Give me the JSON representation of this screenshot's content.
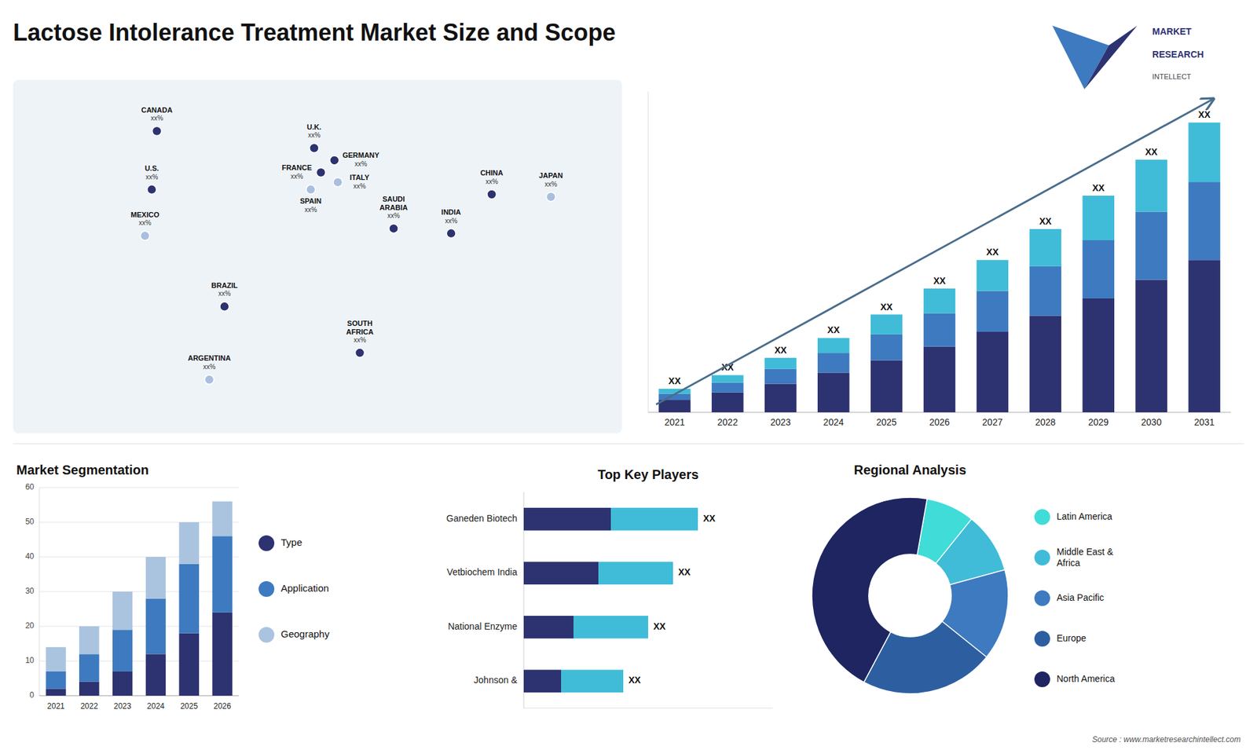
{
  "title": "Lactose Intolerance Treatment Market Size and Scope",
  "annotations": [
    "MARKET",
    "RESEARCH",
    "INTELLECT",
    "Source : www.marketresearchintellect.com"
  ],
  "chart_data": [
    {
      "type": "map",
      "categories": [
        "CANADA",
        "U.S.",
        "MEXICO",
        "BRAZIL",
        "ARGENTINA",
        "U.K.",
        "FRANCE",
        "SPAIN",
        "GERMANY",
        "ITALY",
        "SAUDI\nARABIA",
        "SOUTH\nAFRICA",
        "INDIA",
        "CHINA",
        "JAPAN"
      ],
      "x": [
        -95,
        -98,
        -102,
        -55,
        -64,
        -2,
        2,
        -4,
        10,
        12,
        45,
        25,
        79,
        103,
        138
      ],
      "y": [
        64,
        40,
        21,
        -8,
        -38,
        57,
        47,
        40,
        52,
        43,
        24,
        -27,
        22,
        38,
        37
      ],
      "colors": [
        "#2d3270",
        "#2d3270",
        "#aabfe0",
        "#2d3270",
        "#aabfe0",
        "#2d3270",
        "#2d3270",
        "#aabfe0",
        "#2d3270",
        "#aabfe0",
        "#2d3270",
        "#2d3270",
        "#2d3270",
        "#2d3270",
        "#aabfe0"
      ],
      "annotations": [
        "xx%",
        "xx%",
        "xx%",
        "xx%",
        "xx%",
        "xx%",
        "xx%",
        "xx%",
        "xx%",
        "xx%",
        "xx%",
        "xx%",
        "xx%",
        "xx%",
        "xx%"
      ],
      "xlim": [
        -180,
        180
      ],
      "ylim": [
        -60,
        85
      ],
      "tick_labels": false
    },
    {
      "type": "bar",
      "stacked": true,
      "categories": [
        "2021",
        "2022",
        "2023",
        "2024",
        "2025",
        "2026",
        "2027",
        "2028",
        "2029",
        "2030",
        "2031"
      ],
      "series": [
        {
          "color": "#2d3270",
          "values": [
            1.0,
            1.6,
            2.3,
            3.2,
            4.2,
            5.3,
            6.5,
            7.8,
            9.2,
            10.7,
            12.3
          ]
        },
        {
          "color": "#3e7abf",
          "values": [
            0.5,
            0.8,
            1.2,
            1.6,
            2.1,
            2.7,
            3.3,
            4.0,
            4.7,
            5.5,
            6.3
          ]
        },
        {
          "color": "#40bcd8",
          "values": [
            0.4,
            0.6,
            0.9,
            1.2,
            1.6,
            2.0,
            2.5,
            3.0,
            3.6,
            4.2,
            4.8
          ]
        }
      ],
      "annotations": [
        "XX",
        "XX",
        "XX",
        "XX",
        "XX",
        "XX",
        "XX",
        "XX",
        "XX",
        "XX",
        "XX"
      ],
      "ylim": [
        0,
        25.9
      ],
      "tick_labels": "x"
    },
    {
      "type": "bar",
      "stacked": true,
      "title": "Market Segmentation",
      "categories": [
        "2021",
        "2022",
        "2023",
        "2024",
        "2025",
        "2026"
      ],
      "series": [
        {
          "name": "Type",
          "color": "#2d3270",
          "values": [
            2,
            4,
            7,
            12,
            18,
            24
          ]
        },
        {
          "name": "Application",
          "color": "#3e7abf",
          "values": [
            5,
            8,
            12,
            16,
            20,
            22
          ]
        },
        {
          "name": "Geography",
          "color": "#aac4e0",
          "values": [
            7,
            8,
            11,
            12,
            12,
            10
          ]
        }
      ],
      "ylim": [
        0,
        60
      ],
      "yticks": [
        0,
        10,
        20,
        30,
        40,
        50,
        60
      ],
      "grid": true,
      "legend": "right"
    },
    {
      "type": "bar",
      "orientation": "horizontal",
      "stacked": true,
      "title": "Top Key Players",
      "categories": [
        "Ganeden Biotech",
        "Vetbiochem India",
        "National Enzyme",
        "Johnson &"
      ],
      "series": [
        {
          "color": "#2d3270",
          "values": [
            3.5,
            3.0,
            2.0,
            1.5
          ]
        },
        {
          "color": "#40bcd8",
          "values": [
            3.5,
            3.0,
            3.0,
            2.5
          ]
        }
      ],
      "annotations": [
        "XX",
        "XX",
        "XX",
        "XX"
      ],
      "xlim": [
        0,
        10
      ],
      "tick_labels": "y"
    },
    {
      "type": "pie",
      "title": "Regional Analysis",
      "categories": [
        "Latin America",
        "Middle East &\nAfrica",
        "Asia Pacific",
        "Europe",
        "North America"
      ],
      "values": [
        8,
        10,
        15,
        22,
        45
      ],
      "colors": [
        "#40dcd8",
        "#40bcd8",
        "#3e7abf",
        "#2d5fa0",
        "#1e2560"
      ],
      "legend": "right"
    }
  ]
}
